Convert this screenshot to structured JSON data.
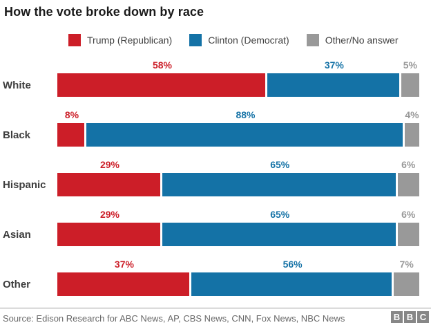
{
  "header": {
    "title": "How the vote broke down by race"
  },
  "legend": {
    "items": [
      {
        "label": "Trump (Republican)",
        "color": "#cc1e28"
      },
      {
        "label": "Clinton (Democrat)",
        "color": "#1472a6"
      },
      {
        "label": "Other/No answer",
        "color": "#999999"
      }
    ]
  },
  "chart_data": {
    "type": "bar",
    "orientation": "horizontal-stacked",
    "title": "How the vote broke down by race",
    "categories": [
      "White",
      "Black",
      "Hispanic",
      "Asian",
      "Other"
    ],
    "series": [
      {
        "name": "Trump (Republican)",
        "color": "#cc1e28",
        "values": [
          58,
          8,
          29,
          29,
          37
        ]
      },
      {
        "name": "Clinton (Democrat)",
        "color": "#1472a6",
        "values": [
          37,
          88,
          65,
          65,
          56
        ]
      },
      {
        "name": "Other/No answer",
        "color": "#999999",
        "values": [
          5,
          4,
          6,
          6,
          7
        ]
      }
    ],
    "value_suffix": "%",
    "xlim": [
      0,
      100
    ],
    "data_labels": "above-segment-center",
    "legend_position": "top",
    "grid": false
  },
  "footer": {
    "source": "Source: Edison Research for ABC News, AP, CBS News, CNN, Fox News, NBC News",
    "logo_blocks": [
      "B",
      "B",
      "C"
    ]
  }
}
